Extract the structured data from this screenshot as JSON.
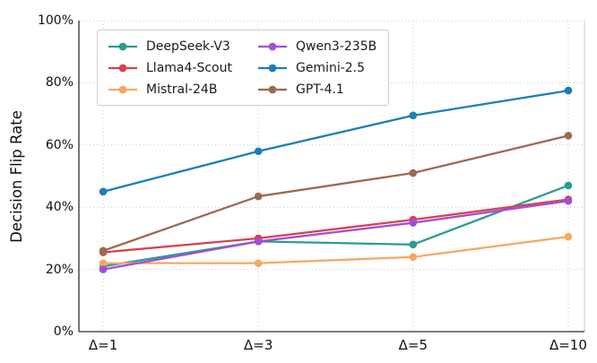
{
  "chart_data": {
    "type": "line",
    "title": "",
    "xlabel": "",
    "ylabel": "Decision Flip Rate",
    "categories": [
      "Δ=1",
      "Δ=3",
      "Δ=5",
      "Δ=10"
    ],
    "series": [
      {
        "name": "DeepSeek-V3",
        "color": "#2a9d8f",
        "values": [
          21,
          29,
          28,
          47
        ]
      },
      {
        "name": "Llama4-Scout",
        "color": "#d8414f",
        "values": [
          25.5,
          30,
          36,
          42.5
        ]
      },
      {
        "name": "Mistral-24B",
        "color": "#f4a963",
        "values": [
          22,
          22,
          24,
          30.5
        ]
      },
      {
        "name": "Qwen3-235B",
        "color": "#a14fd8",
        "values": [
          20,
          29,
          35,
          42
        ]
      },
      {
        "name": "Gemini-2.5",
        "color": "#1b7eb8",
        "values": [
          45,
          58,
          69.5,
          77.5
        ]
      },
      {
        "name": "GPT-4.1",
        "color": "#9a6b4f",
        "values": [
          26,
          43.5,
          51,
          63
        ]
      }
    ],
    "ylim": [
      0,
      100
    ],
    "yticks": [
      "0%",
      "20%",
      "40%",
      "60%",
      "80%",
      "100%"
    ],
    "grid": "dotted",
    "marker": "circle",
    "legend_position": "top-left-inside",
    "legend_columns": 2,
    "legend_row_order": [
      [
        "DeepSeek-V3",
        "Qwen3-235B"
      ],
      [
        "Llama4-Scout",
        "Gemini-2.5"
      ],
      [
        "Mistral-24B",
        "GPT-4.1"
      ]
    ],
    "colors": {
      "axis_spine": "#2b2b2b",
      "gridline": "#c9c9c9",
      "tick_text": "#111111",
      "legend_border": "#cccccc"
    }
  }
}
